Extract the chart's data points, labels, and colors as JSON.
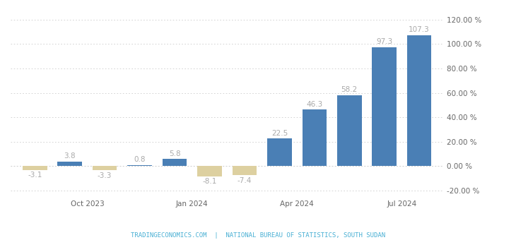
{
  "values": [
    -3.1,
    3.8,
    -3.3,
    0.8,
    5.8,
    -8.1,
    -7.4,
    22.5,
    46.3,
    58.2,
    97.3,
    107.3
  ],
  "bar_colors": [
    "#ddd0a0",
    "#4a7fb5",
    "#ddd0a0",
    "#4a7fb5",
    "#4a7fb5",
    "#ddd0a0",
    "#ddd0a0",
    "#4a7fb5",
    "#4a7fb5",
    "#4a7fb5",
    "#4a7fb5",
    "#4a7fb5"
  ],
  "x_positions": [
    0,
    1,
    2,
    3,
    4,
    5,
    6,
    7,
    8,
    9,
    10,
    11
  ],
  "xtick_positions": [
    1.5,
    4.5,
    7.5,
    10.5
  ],
  "xtick_labels": [
    "Oct 2023",
    "Jan 2024",
    "Apr 2024",
    "Jul 2024"
  ],
  "ytick_values": [
    -20,
    0,
    20,
    40,
    60,
    80,
    100,
    120
  ],
  "ytick_labels": [
    "-20.00 %",
    "0.00 %",
    "20.00 %",
    "40.00 %",
    "60.00 %",
    "80.00 %",
    "100.00 %",
    "120.00 %"
  ],
  "ylim": [
    -25,
    130
  ],
  "bar_width": 0.7,
  "background_color": "#ffffff",
  "grid_color": "#cccccc",
  "label_color": "#aaaaaa",
  "footer_text": "TRADINGECONOMICS.COM  |  NATIONAL BUREAU OF STATISTICS, SOUTH SUDAN",
  "footer_color": "#4ab0d4",
  "footer_fontsize": 6.5,
  "label_fontsize": 7.5,
  "tick_fontsize": 7.5
}
